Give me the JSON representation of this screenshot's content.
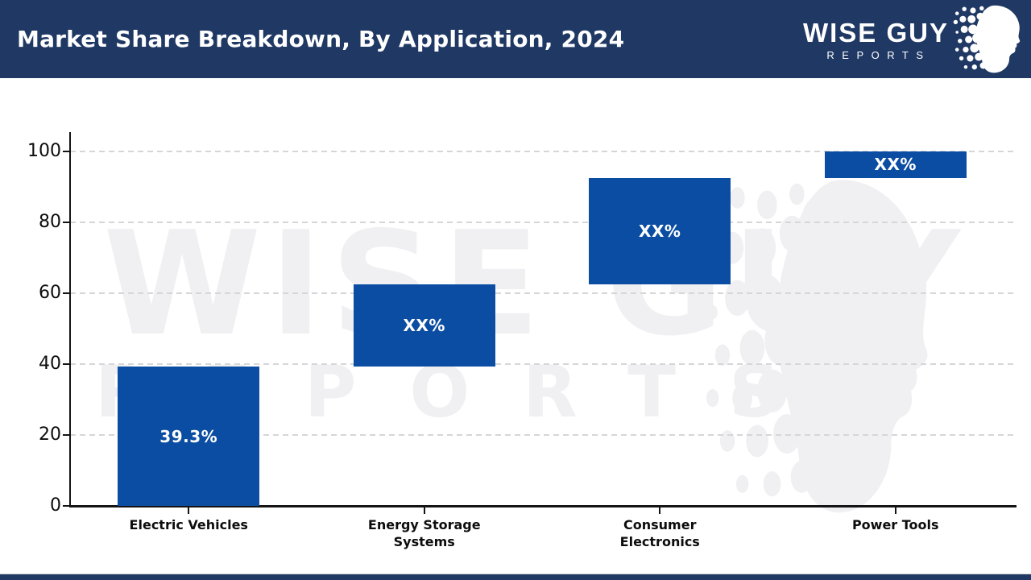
{
  "header": {
    "title": "Market Share Breakdown, By Application, 2024",
    "logo_line1": "WISE GUY",
    "logo_line2": "REPORTS"
  },
  "watermark": {
    "line1": "WISE GUY",
    "line2": "REPORTS"
  },
  "colors": {
    "header_bg": "#1f3864",
    "bar": "#0b4da2",
    "grid": "#d6d6d9",
    "axis": "#141414",
    "bar_label": "#ffffff",
    "watermark": "#f0f0f3"
  },
  "chart_data": {
    "type": "bar",
    "variant": "floating-waterfall",
    "title": "Market Share Breakdown, By Application, 2024",
    "xlabel": "",
    "ylabel": "",
    "ylim": [
      0,
      105
    ],
    "y_ticks": [
      0,
      20,
      40,
      60,
      80,
      100
    ],
    "grid": "horizontal-dashed",
    "legend": "none",
    "categories": [
      "Electric Vehicles",
      "Energy Storage Systems",
      "Consumer Electronics",
      "Power Tools"
    ],
    "segments": [
      {
        "category": "Electric Vehicles",
        "start": 0,
        "end": 39.3,
        "label": "39.3%"
      },
      {
        "category": "Energy Storage Systems",
        "start": 39.3,
        "end": 62.6,
        "label": "XX%"
      },
      {
        "category": "Consumer Electronics",
        "start": 62.6,
        "end": 92.6,
        "label": "XX%"
      },
      {
        "category": "Power Tools",
        "start": 92.6,
        "end": 100,
        "label": "XX%"
      }
    ]
  }
}
